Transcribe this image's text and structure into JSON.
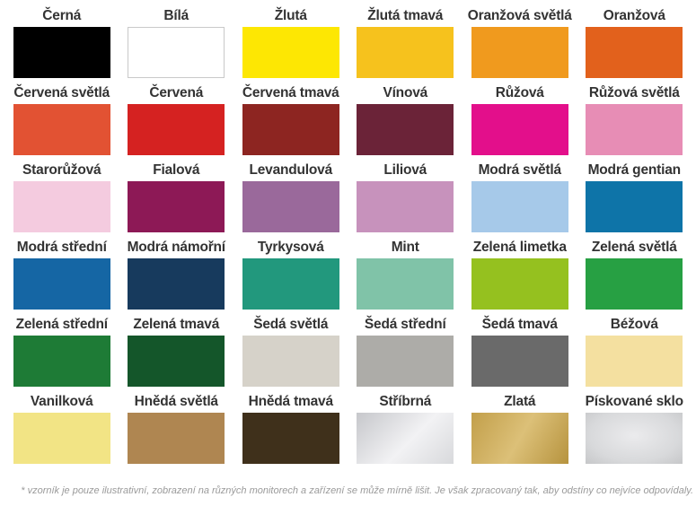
{
  "palette": {
    "rows": 6,
    "columns": 6,
    "swatches": [
      {
        "label": "Černá",
        "color": "#000000"
      },
      {
        "label": "Bílá",
        "color": "#ffffff",
        "border": "#c9c9c9"
      },
      {
        "label": "Žlutá",
        "color": "#fde703"
      },
      {
        "label": "Žlutá tmavá",
        "color": "#f6c21d"
      },
      {
        "label": "Oranžová světlá",
        "color": "#f09a1e"
      },
      {
        "label": "Oranžová",
        "color": "#e2611c"
      },
      {
        "label": "Červená světlá",
        "color": "#e25233"
      },
      {
        "label": "Červená",
        "color": "#d52221"
      },
      {
        "label": "Červená tmavá",
        "color": "#8d2521"
      },
      {
        "label": "Vínová",
        "color": "#6b2338"
      },
      {
        "label": "Růžová",
        "color": "#e30f8b"
      },
      {
        "label": "Růžová světlá",
        "color": "#e78db5"
      },
      {
        "label": "Starorůžová",
        "color": "#f4cbdf"
      },
      {
        "label": "Fialová",
        "color": "#8d1956"
      },
      {
        "label": "Levandulová",
        "color": "#9a699b"
      },
      {
        "label": "Liliová",
        "color": "#c792bc"
      },
      {
        "label": "Modrá světlá",
        "color": "#a6c9e9"
      },
      {
        "label": "Modrá gentian",
        "color": "#0e74a8"
      },
      {
        "label": "Modrá střední",
        "color": "#1566a4"
      },
      {
        "label": "Modrá námořní",
        "color": "#173a5d"
      },
      {
        "label": "Tyrkysová",
        "color": "#22987d"
      },
      {
        "label": "Mint",
        "color": "#80c3a8"
      },
      {
        "label": "Zelená limetka",
        "color": "#95c11f"
      },
      {
        "label": "Zelená světlá",
        "color": "#27a043"
      },
      {
        "label": "Zelená střední",
        "color": "#1e7b36"
      },
      {
        "label": "Zelená tmavá",
        "color": "#14562a"
      },
      {
        "label": "Šedá světlá",
        "color": "#d6d2c9"
      },
      {
        "label": "Šedá střední",
        "color": "#adaca8"
      },
      {
        "label": "Šedá tmavá",
        "color": "#6a6a6a"
      },
      {
        "label": "Béžová",
        "color": "#f4e0a0"
      },
      {
        "label": "Vanilková",
        "color": "#f2e485"
      },
      {
        "label": "Hnědá světlá",
        "color": "#af8651"
      },
      {
        "label": "Hnědá tmavá",
        "color": "#3f301b"
      },
      {
        "label": "Stříbrná",
        "gradient": {
          "kind": "linear",
          "angle": "135deg",
          "stops": [
            "#c6c7cb 0%",
            "#f2f2f4 55%",
            "#d8d9dc 100%"
          ]
        }
      },
      {
        "label": "Zlatá",
        "gradient": {
          "kind": "linear",
          "angle": "120deg",
          "stops": [
            "#c29f4a 0%",
            "#dcc078 50%",
            "#b6933e 100%"
          ]
        }
      },
      {
        "label": "Pískované sklo",
        "gradient": {
          "kind": "radial",
          "stops": [
            "#ebebed 0%",
            "#d8d9db 65%",
            "#c6c7c9 100%"
          ]
        }
      }
    ]
  },
  "footer": {
    "note": "* vzorník je pouze ilustrativní, zobrazení na různých monitorech a zařízení se může mírně lišit. Je však zpracovaný tak, aby odstíny co nejvíce odpovídaly."
  },
  "style_colors": {
    "label_text": "#333333",
    "footer_text": "#9a9a9a",
    "background": "#ffffff",
    "white_swatch_border": "#c9c9c9"
  }
}
